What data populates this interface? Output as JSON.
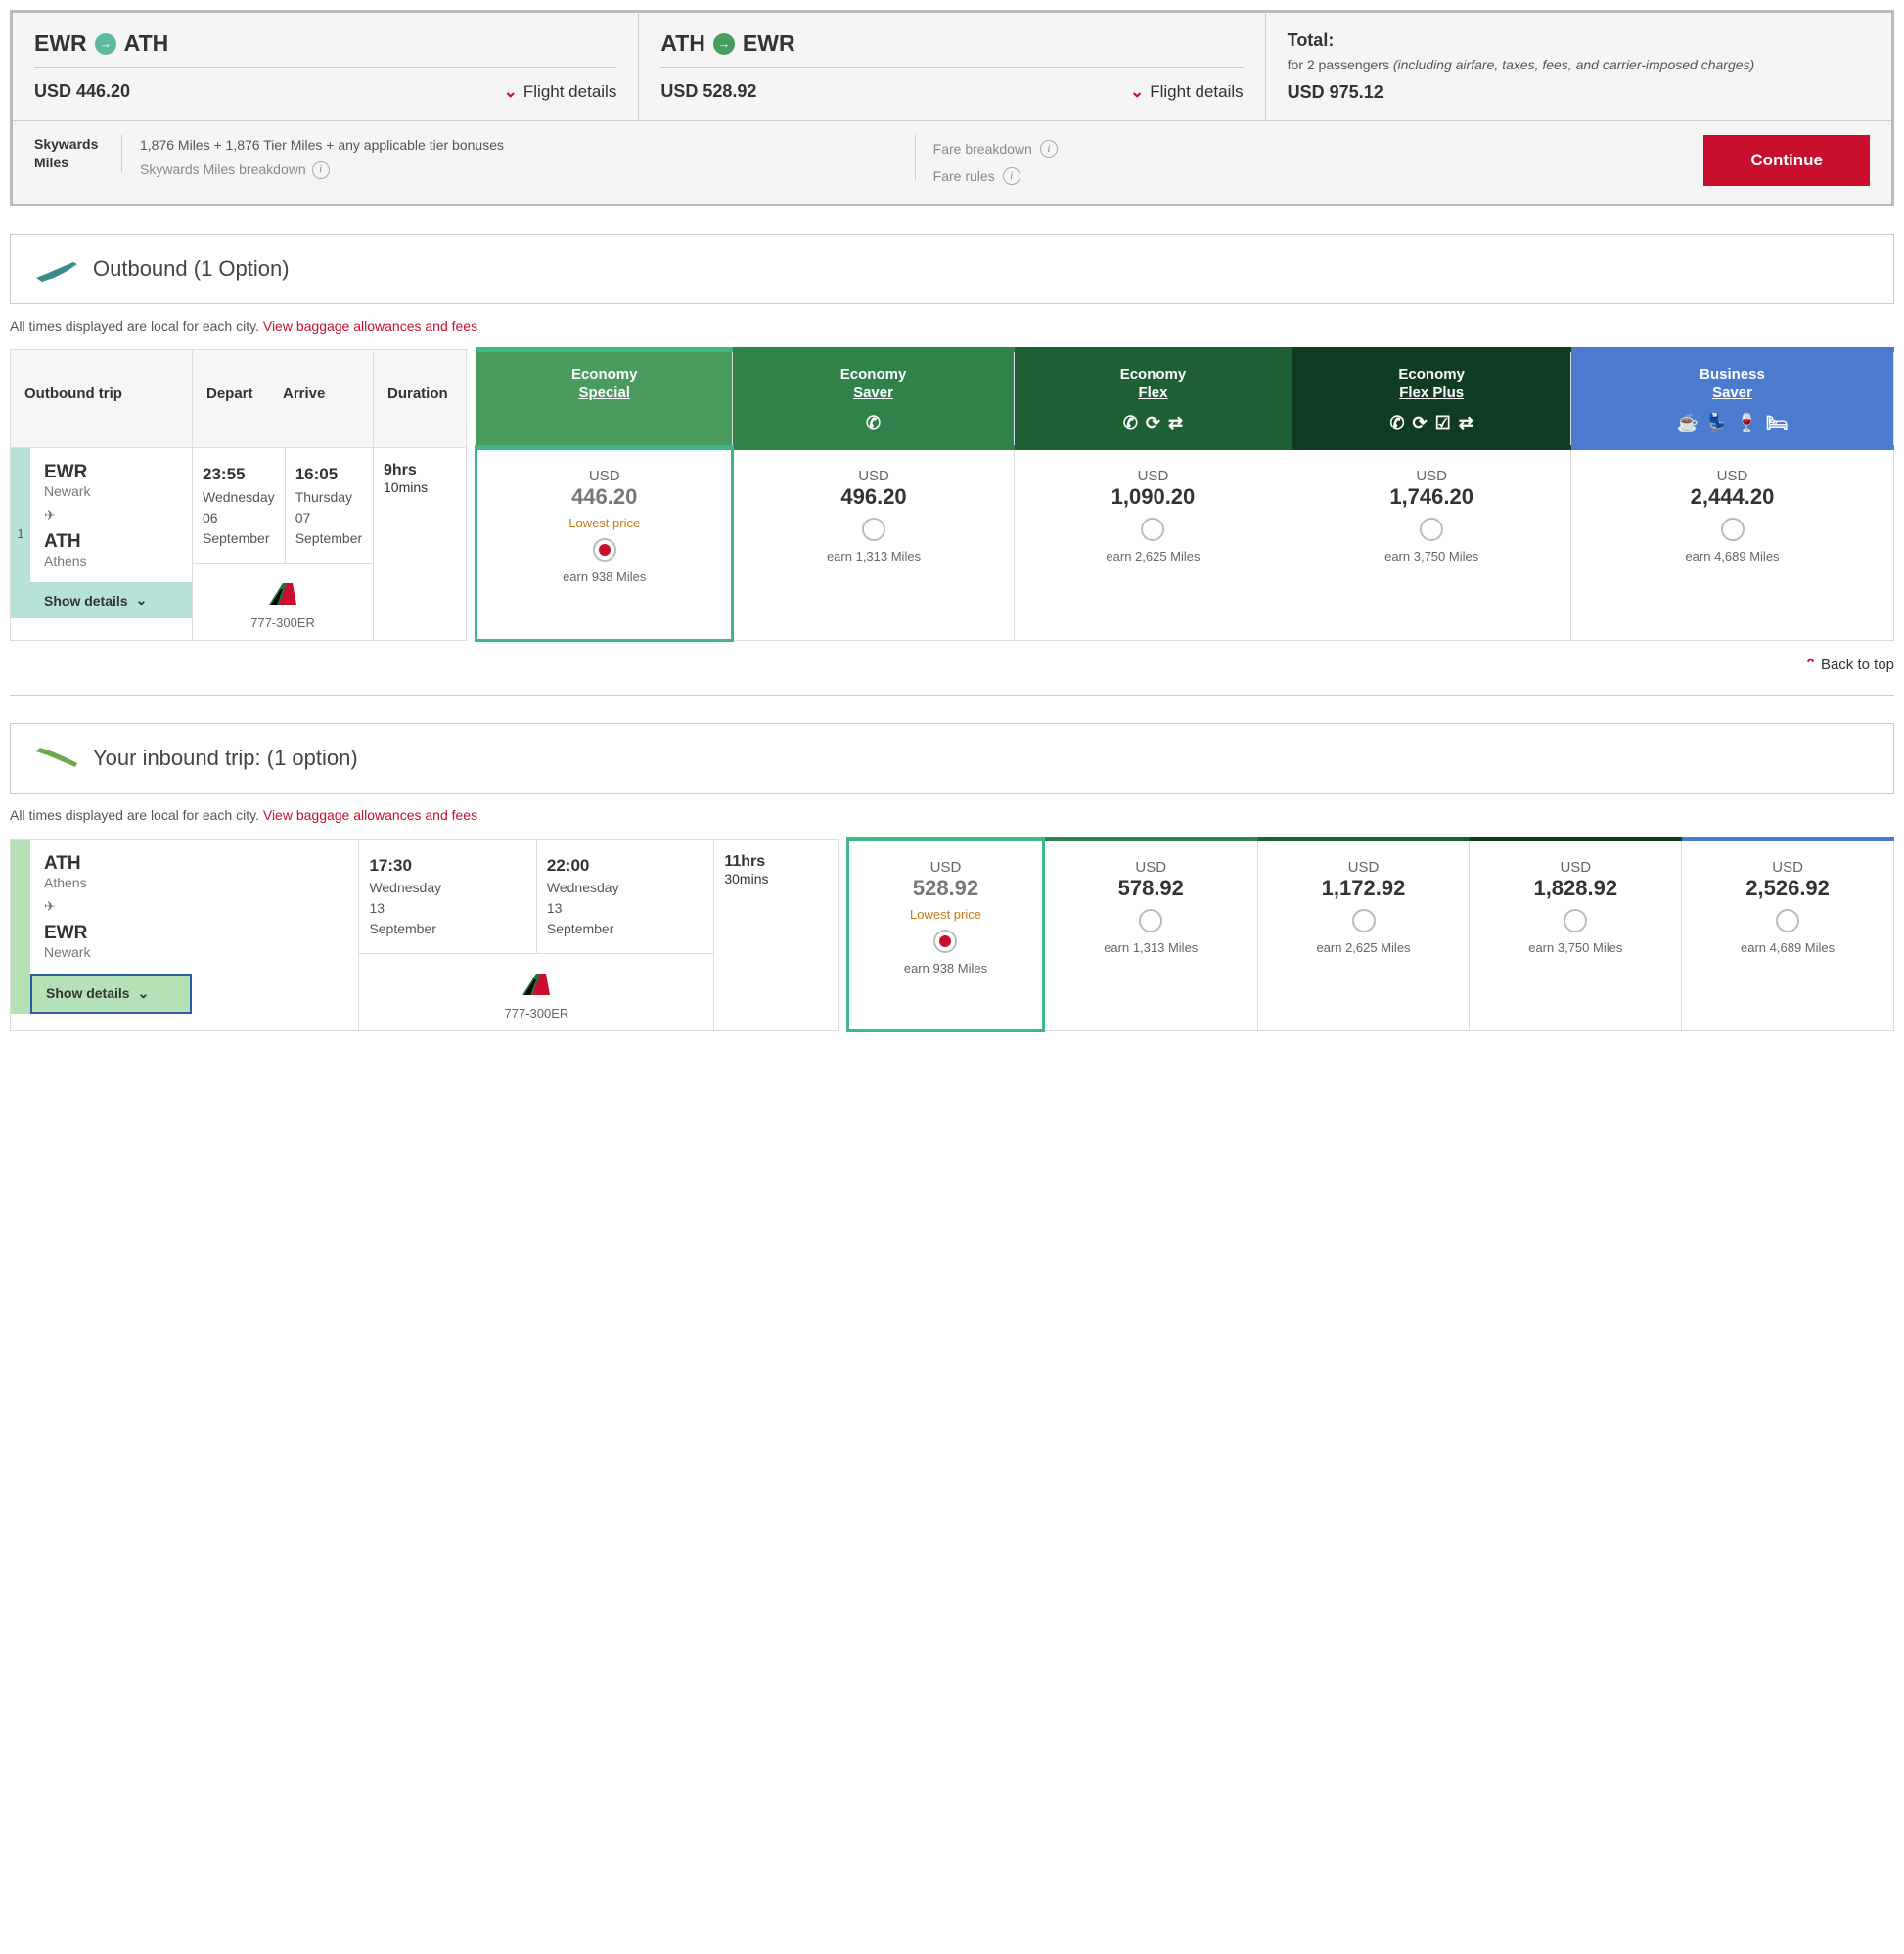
{
  "summary": {
    "out": {
      "from": "EWR",
      "to": "ATH",
      "price": "USD 446.20",
      "details": "Flight details"
    },
    "in": {
      "from": "ATH",
      "to": "EWR",
      "price": "USD 528.92",
      "details": "Flight details"
    },
    "total_label": "Total:",
    "total_note_a": "for 2 passengers ",
    "total_note_b": "(including airfare, taxes, fees, and carrier-imposed charges)",
    "total_price": "USD 975.12",
    "miles_label": "Skywards Miles",
    "miles_text": "1,876 Miles + 1,876 Tier Miles + any applicable tier bonuses",
    "miles_bd": "Skywards Miles breakdown",
    "fare_bd": "Fare breakdown",
    "fare_rules": "Fare rules",
    "continue": "Continue"
  },
  "sections": {
    "outbound_title": "Outbound (1 Option)",
    "inbound_title": "Your inbound trip: (1 option)"
  },
  "local_note": "All times displayed are local for each city. ",
  "baggage_link": "View baggage allowances and fees",
  "back_top": "Back to top",
  "headers": {
    "trip": "Outbound trip",
    "depart": "Depart",
    "arrive": "Arrive",
    "duration": "Duration"
  },
  "fares": [
    {
      "name": "Economy",
      "sub": "Special",
      "bg": "#4a9b5e",
      "accent": "#3db783",
      "icons": []
    },
    {
      "name": "Economy",
      "sub": "Saver",
      "bg": "#2f8249",
      "accent": "#2f8249",
      "icons": [
        "call"
      ]
    },
    {
      "name": "Economy",
      "sub": "Flex",
      "bg": "#1f5f34",
      "accent": "#1f5f34",
      "icons": [
        "call",
        "refresh",
        "swap"
      ]
    },
    {
      "name": "Economy",
      "sub": "Flex Plus",
      "bg": "#103d22",
      "accent": "#103d22",
      "icons": [
        "call",
        "refresh",
        "check",
        "swap"
      ]
    },
    {
      "name": "Business",
      "sub": "Saver",
      "bg": "#4a7bcf",
      "accent": "#4a7bcf",
      "icons": [
        "lounge",
        "seat",
        "drink",
        "flat"
      ]
    }
  ],
  "outbound": {
    "idx": "1",
    "from_code": "EWR",
    "from_city": "Newark",
    "to_code": "ATH",
    "to_city": "Athens",
    "show_details": "Show details",
    "depart": {
      "time": "23:55",
      "day": "Wednesday",
      "date": "06",
      "month": "September"
    },
    "arrive": {
      "time": "16:05",
      "day": "Thursday",
      "date": "07",
      "month": "September"
    },
    "aircraft": "777-300ER",
    "duration": {
      "h": "9hrs",
      "m": "10mins"
    },
    "prices": [
      {
        "cur": "USD",
        "amt": "446.20",
        "lowest": "Lowest price",
        "selected": true,
        "earn": "earn 938 Miles"
      },
      {
        "cur": "USD",
        "amt": "496.20",
        "lowest": "",
        "selected": false,
        "earn": "earn 1,313 Miles"
      },
      {
        "cur": "USD",
        "amt": "1,090.20",
        "lowest": "",
        "selected": false,
        "earn": "earn 2,625 Miles"
      },
      {
        "cur": "USD",
        "amt": "1,746.20",
        "lowest": "",
        "selected": false,
        "earn": "earn 3,750 Miles"
      },
      {
        "cur": "USD",
        "amt": "2,444.20",
        "lowest": "",
        "selected": false,
        "earn": "earn 4,689 Miles"
      }
    ]
  },
  "inbound": {
    "idx": "",
    "from_code": "ATH",
    "from_city": "Athens",
    "to_code": "EWR",
    "to_city": "Newark",
    "show_details": "Show details",
    "depart": {
      "time": "17:30",
      "day": "Wednesday",
      "date": "13",
      "month": "September"
    },
    "arrive": {
      "time": "22:00",
      "day": "Wednesday",
      "date": "13",
      "month": "September"
    },
    "aircraft": "777-300ER",
    "duration": {
      "h": "11hrs",
      "m": "30mins"
    },
    "prices": [
      {
        "cur": "USD",
        "amt": "528.92",
        "lowest": "Lowest price",
        "selected": true,
        "earn": "earn 938 Miles"
      },
      {
        "cur": "USD",
        "amt": "578.92",
        "lowest": "",
        "selected": false,
        "earn": "earn 1,313 Miles"
      },
      {
        "cur": "USD",
        "amt": "1,172.92",
        "lowest": "",
        "selected": false,
        "earn": "earn 2,625 Miles"
      },
      {
        "cur": "USD",
        "amt": "1,828.92",
        "lowest": "",
        "selected": false,
        "earn": "earn 3,750 Miles"
      },
      {
        "cur": "USD",
        "amt": "2,526.92",
        "lowest": "",
        "selected": false,
        "earn": "earn 4,689 Miles"
      }
    ]
  }
}
